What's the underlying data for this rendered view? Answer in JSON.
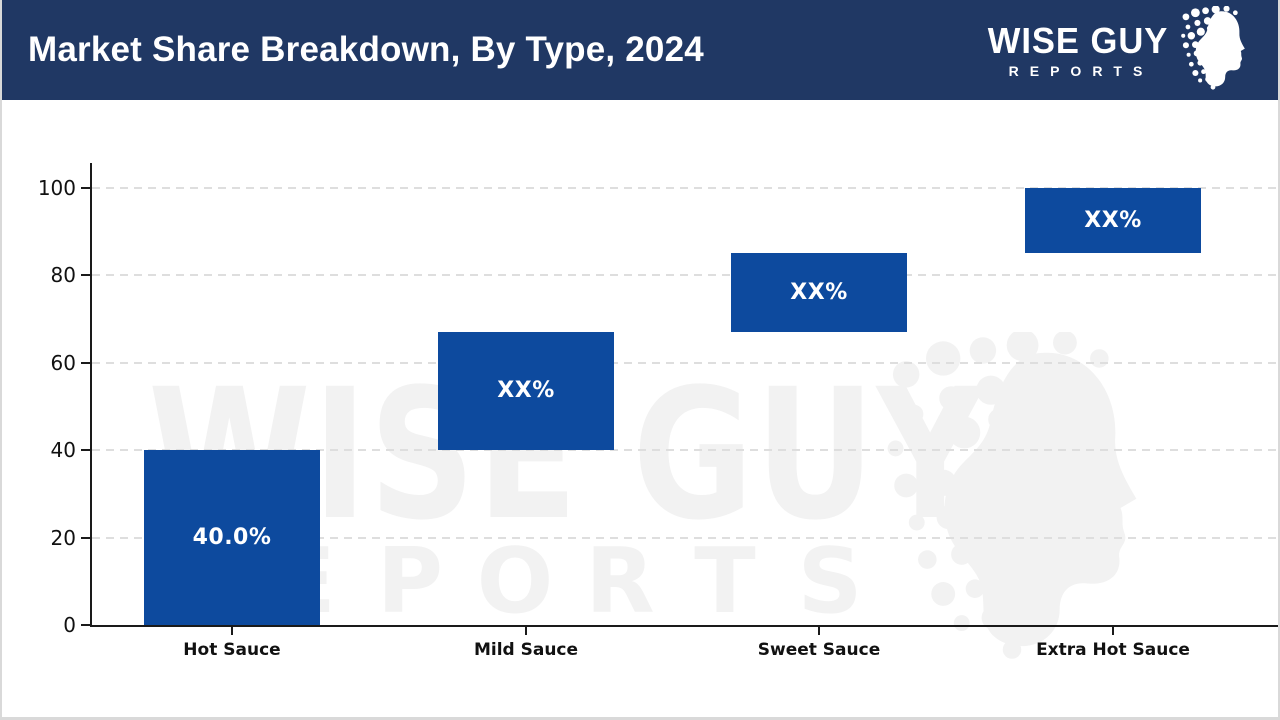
{
  "header": {
    "title": "Market Share Breakdown, By Type, 2024",
    "background_color": "#203864"
  },
  "logo": {
    "wordmark": "WISE GUY",
    "subtext": "REPORTS",
    "head_icon": "dotted-head-profile",
    "color": "#ffffff"
  },
  "watermark": {
    "wordmark": "WISE GUY",
    "reports_letters": "REPORTS",
    "head_icon": "dotted-head-profile",
    "color": "#f2f2f2"
  },
  "chart_data": {
    "type": "bar",
    "subtype": "waterfall",
    "title": "Market Share Breakdown, By Type, 2024",
    "categories": [
      "Hot Sauce",
      "Mild Sauce",
      "Sweet Sauce",
      "Extra Hot Sauce"
    ],
    "segments": [
      {
        "category": "Hot Sauce",
        "start": 0,
        "end": 40,
        "label": "40.0%"
      },
      {
        "category": "Mild Sauce",
        "start": 40,
        "end": 67,
        "label": "XX%"
      },
      {
        "category": "Sweet Sauce",
        "start": 67,
        "end": 85,
        "label": "XX%"
      },
      {
        "category": "Extra Hot Sauce",
        "start": 85,
        "end": 100,
        "label": "XX%"
      }
    ],
    "xlabel": "",
    "ylabel": "",
    "yticks": [
      0,
      20,
      40,
      60,
      80,
      100
    ],
    "ylim": [
      0,
      105
    ],
    "bar_color": "#0d4a9e",
    "bar_label_color": "#ffffff",
    "grid": "horizontal-dashed",
    "legend": "none"
  }
}
